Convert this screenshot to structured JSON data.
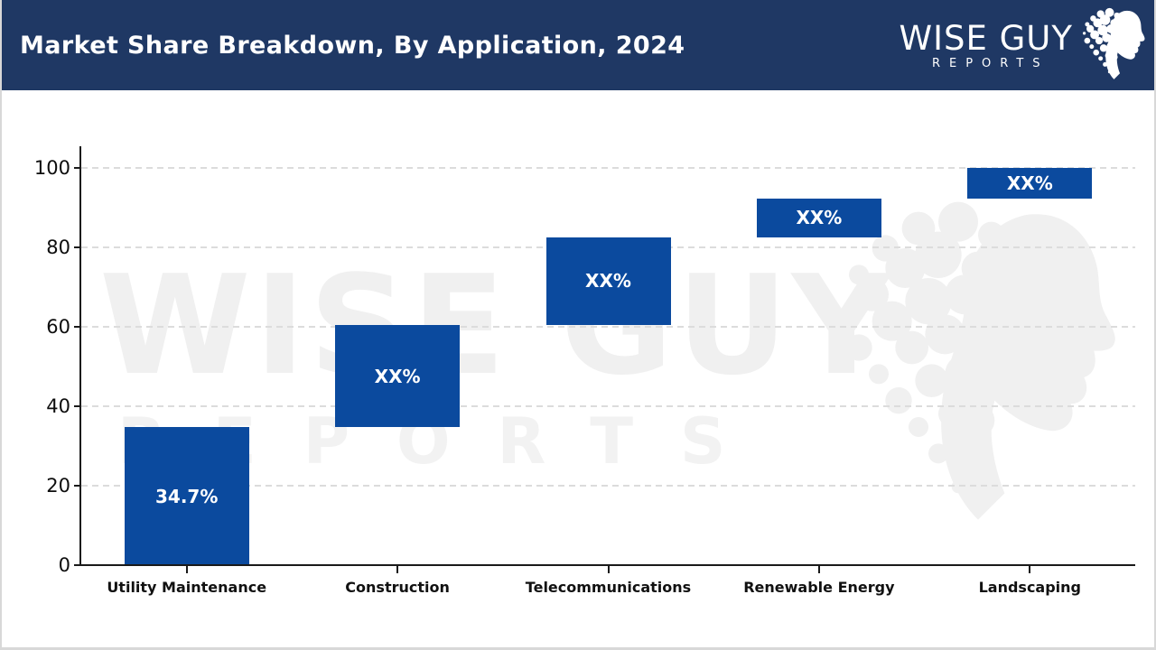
{
  "header": {
    "title": "Market Share Breakdown, By Application, 2024",
    "bg_color": "#1f3864",
    "logo": {
      "line1": "WISE GUY",
      "line2": "REPORTS"
    }
  },
  "watermark": {
    "line1": "WISE GUY",
    "line2": "REPORTS"
  },
  "chart_data": {
    "type": "bar",
    "subtype": "waterfall",
    "title": "Market Share Breakdown, By Application, 2024",
    "categories": [
      "Utility Maintenance",
      "Construction",
      "Telecommunications",
      "Renewable Energy",
      "Landscaping"
    ],
    "series": [
      {
        "name": "Market share (%)",
        "segments": [
          {
            "category": "Utility Maintenance",
            "start": 0,
            "end": 34.7,
            "label": "34.7%"
          },
          {
            "category": "Construction",
            "start": 34.7,
            "end": 60.5,
            "label": "XX%"
          },
          {
            "category": "Telecommunications",
            "start": 60.5,
            "end": 82.5,
            "label": "XX%"
          },
          {
            "category": "Renewable Energy",
            "start": 82.5,
            "end": 92.3,
            "label": "XX%"
          },
          {
            "category": "Landscaping",
            "start": 92.3,
            "end": 100,
            "label": "XX%"
          }
        ]
      }
    ],
    "xlabel": "",
    "ylabel": "",
    "yticks": [
      0,
      20,
      40,
      60,
      80,
      100
    ],
    "ylim": [
      0,
      105
    ],
    "grid": "horizontal-dashed",
    "legend": "none",
    "bar_color": "#0b4a9e",
    "bar_label_color": "#ffffff",
    "header_color": "#1f3864"
  }
}
